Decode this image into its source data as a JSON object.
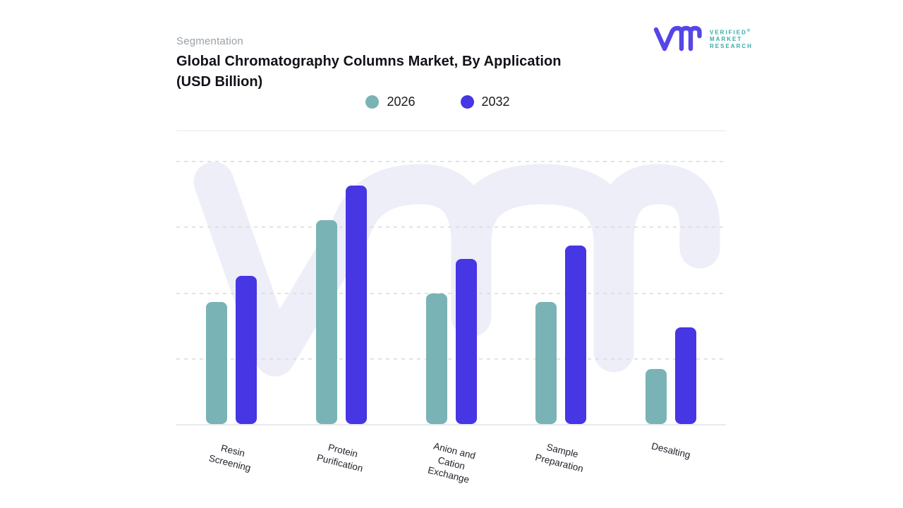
{
  "header": {
    "eyebrow": "Segmentation",
    "title": "Global Chromatography Columns Market, By Application",
    "title_suffix": "(USD Billion)"
  },
  "legend": [
    {
      "label": "2026",
      "color": "#7ab3b5"
    },
    {
      "label": "2032",
      "color": "#4636e3"
    }
  ],
  "logo": {
    "lines": [
      "VERIFIED",
      "MARKET",
      "RESEARCH"
    ],
    "registered_mark": "®",
    "mark_color": "#5546e8",
    "text_color": "#35aba5"
  },
  "watermark": {
    "glyphs": "vmr",
    "color": "#edeef8"
  },
  "chart_data": {
    "type": "bar",
    "title": "Global Chromatography Columns Market, By Application (USD Billion)",
    "categories": [
      "Resin Screening",
      "Protein Purification",
      "Anion and Cation Exchange",
      "Sample Preparation",
      "Desalting"
    ],
    "category_label_lines": [
      [
        "Resin",
        "Screening"
      ],
      [
        "Protein",
        "Purification"
      ],
      [
        "Anion and",
        "Cation",
        "Exchange"
      ],
      [
        "Sample",
        "Preparation"
      ],
      [
        "Desalting"
      ]
    ],
    "series": [
      {
        "name": "2026",
        "color": "#7ab3b5",
        "values": [
          1.85,
          3.1,
          1.98,
          1.85,
          0.84
        ]
      },
      {
        "name": "2032",
        "color": "#4636e3",
        "values": [
          2.25,
          3.62,
          2.51,
          2.71,
          1.47
        ]
      }
    ],
    "xlabel": "",
    "ylabel": "",
    "units": "USD Billion",
    "y_axis": {
      "min": 0,
      "max": 4,
      "gridline_count": 4,
      "tick_labels_visible": false,
      "note": "y-axis tick values are not printed in the source image; series values are estimated in gridline units"
    },
    "legend_position": "top-center",
    "grid": "dashed-horizontal",
    "bar_corner_radius": 8
  }
}
